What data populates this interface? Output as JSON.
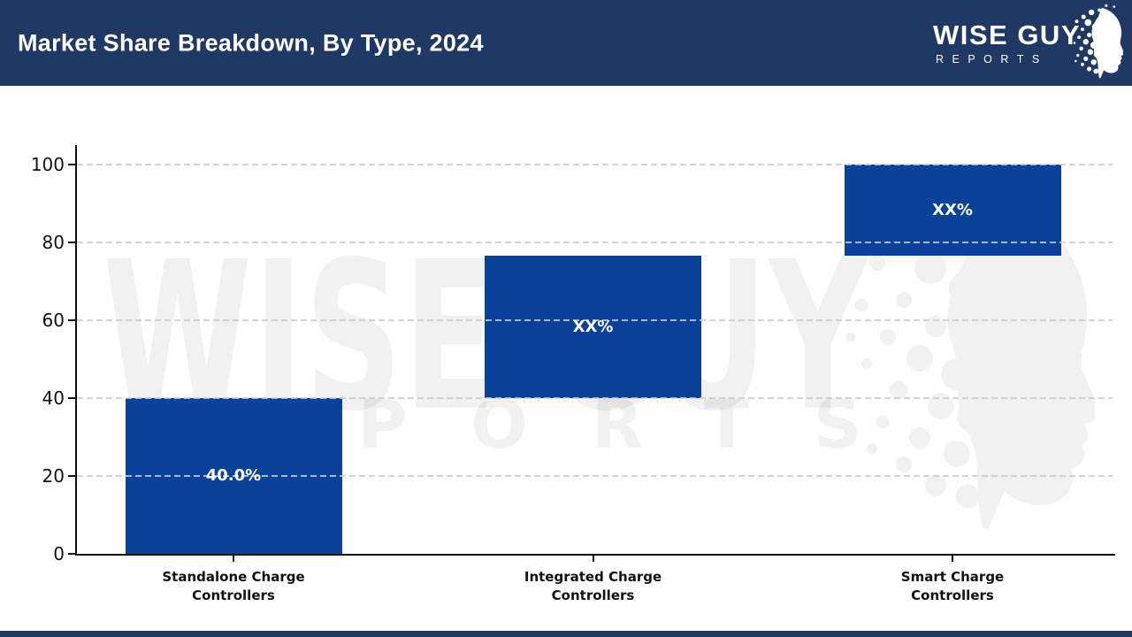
{
  "header": {
    "title": "Market Share Breakdown, By Type, 2024",
    "logo": {
      "brand_top": "WISE GUY",
      "brand_bottom": "REPORTS",
      "icon": "dotted-head-profile"
    }
  },
  "watermark": {
    "brand_top": "WISE GUY",
    "brand_bottom": "REPORTS"
  },
  "chart_data": {
    "type": "bar",
    "subtype": "floating-segment-waterfall",
    "title": "Market Share Breakdown, By Type, 2024",
    "categories": [
      "Standalone Charge Controllers",
      "Integrated Charge Controllers",
      "Smart Charge Controllers"
    ],
    "category_label_lines": [
      [
        "Standalone Charge",
        "Controllers"
      ],
      [
        "Integrated Charge",
        "Controllers"
      ],
      [
        "Smart Charge",
        "Controllers"
      ]
    ],
    "segments": [
      {
        "category": "Standalone Charge Controllers",
        "start": 0,
        "end": 40,
        "label": "40.0%"
      },
      {
        "category": "Integrated Charge Controllers",
        "start": 40,
        "end": 76.5,
        "label": "XX%"
      },
      {
        "category": "Smart Charge Controllers",
        "start": 76.5,
        "end": 100,
        "label": "XX%"
      }
    ],
    "xlabel": "",
    "ylabel": "",
    "yticks": [
      0,
      20,
      40,
      60,
      80,
      100
    ],
    "ylim": [
      0,
      105
    ],
    "grid": {
      "horizontal": true,
      "style": "dashed"
    },
    "legend": null
  },
  "colors": {
    "header_bg": "#1f3864",
    "footer_bg": "#1f3864",
    "bar_fill": "#0a4199",
    "bar_label": "#ffffff",
    "grid_line": "#dcdcdc",
    "axis_line": "#111111",
    "tick_label": "#111111",
    "watermark": "#f1f1f1",
    "page_bg": "#ffffff"
  }
}
